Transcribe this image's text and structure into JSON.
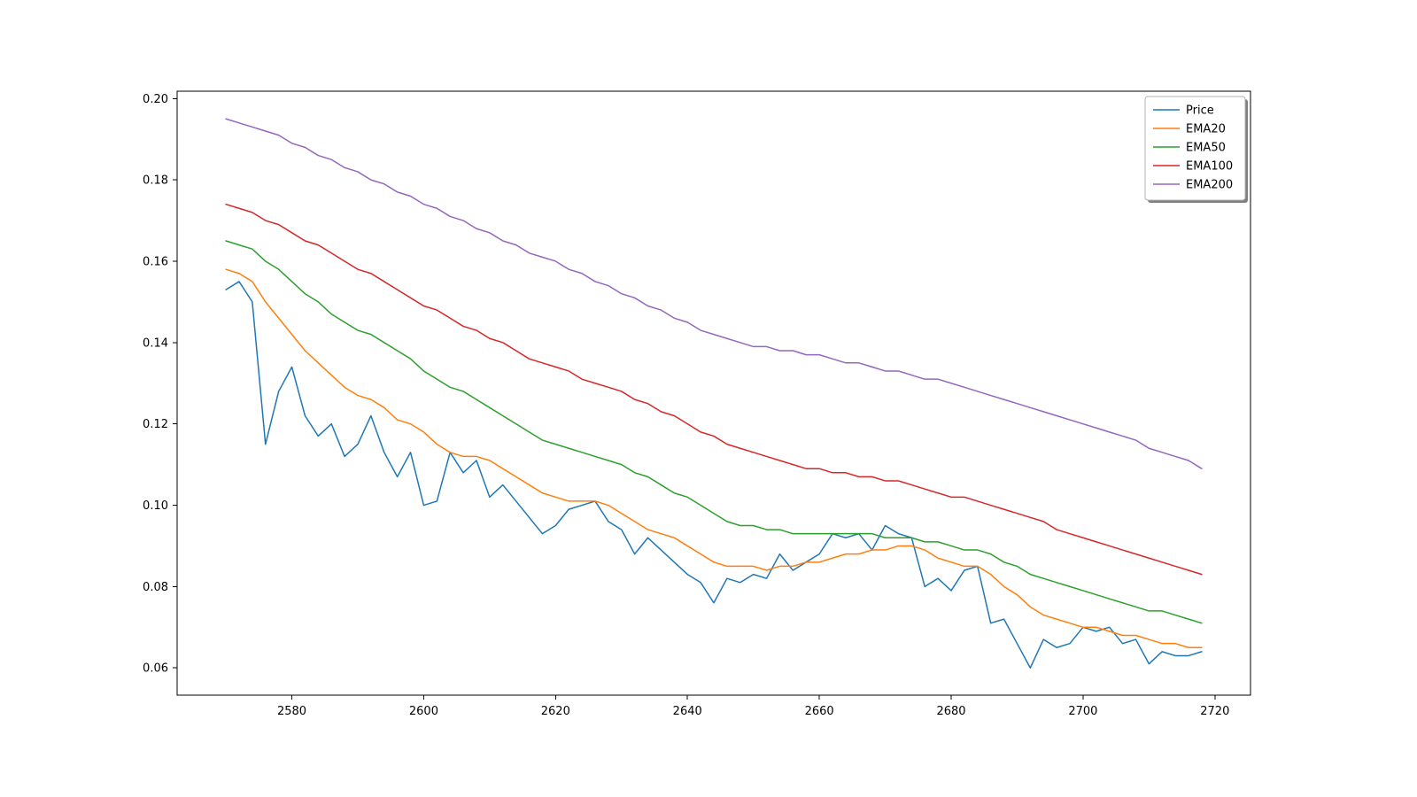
{
  "chart_data": {
    "type": "line",
    "title": "",
    "xlabel": "",
    "ylabel": "",
    "grid": false,
    "legend_position": "upper right",
    "xlim": [
      2562.6,
      2725.4
    ],
    "ylim": [
      0.0533,
      0.2018
    ],
    "x_ticks": [
      2580,
      2600,
      2620,
      2640,
      2660,
      2680,
      2700,
      2720
    ],
    "x_tick_labels": [
      "2580",
      "2600",
      "2620",
      "2640",
      "2660",
      "2680",
      "2700",
      "2720"
    ],
    "y_ticks": [
      0.06,
      0.08,
      0.1,
      0.12,
      0.14,
      0.16,
      0.18,
      0.2
    ],
    "y_tick_labels": [
      "0.06",
      "0.08",
      "0.10",
      "0.12",
      "0.14",
      "0.16",
      "0.18",
      "0.20"
    ],
    "x": [
      2570,
      2572,
      2574,
      2576,
      2578,
      2580,
      2582,
      2584,
      2586,
      2588,
      2590,
      2592,
      2594,
      2596,
      2598,
      2600,
      2602,
      2604,
      2606,
      2608,
      2610,
      2612,
      2614,
      2616,
      2618,
      2620,
      2622,
      2624,
      2626,
      2628,
      2630,
      2632,
      2634,
      2636,
      2638,
      2640,
      2642,
      2644,
      2646,
      2648,
      2650,
      2652,
      2654,
      2656,
      2658,
      2660,
      2662,
      2664,
      2666,
      2668,
      2670,
      2672,
      2674,
      2676,
      2678,
      2680,
      2682,
      2684,
      2686,
      2688,
      2690,
      2692,
      2694,
      2696,
      2698,
      2700,
      2702,
      2704,
      2706,
      2708,
      2710,
      2712,
      2714,
      2716,
      2718
    ],
    "series": [
      {
        "name": "Price",
        "color": "#1f77b4",
        "values": [
          0.153,
          0.155,
          0.15,
          0.115,
          0.128,
          0.134,
          0.122,
          0.117,
          0.12,
          0.112,
          0.115,
          0.122,
          0.113,
          0.107,
          0.113,
          0.1,
          0.101,
          0.113,
          0.108,
          0.111,
          0.102,
          0.105,
          0.101,
          0.097,
          0.093,
          0.095,
          0.099,
          0.1,
          0.101,
          0.096,
          0.094,
          0.088,
          0.092,
          0.089,
          0.086,
          0.083,
          0.081,
          0.076,
          0.082,
          0.081,
          0.083,
          0.082,
          0.088,
          0.084,
          0.086,
          0.088,
          0.093,
          0.092,
          0.093,
          0.089,
          0.095,
          0.093,
          0.092,
          0.08,
          0.082,
          0.079,
          0.084,
          0.085,
          0.071,
          0.072,
          0.066,
          0.06,
          0.067,
          0.065,
          0.066,
          0.07,
          0.069,
          0.07,
          0.066,
          0.067,
          0.061,
          0.064,
          0.063,
          0.063,
          0.064
        ]
      },
      {
        "name": "EMA20",
        "color": "#ff7f0e",
        "values": [
          0.158,
          0.157,
          0.155,
          0.15,
          0.146,
          0.142,
          0.138,
          0.135,
          0.132,
          0.129,
          0.127,
          0.126,
          0.124,
          0.121,
          0.12,
          0.118,
          0.115,
          0.113,
          0.112,
          0.112,
          0.111,
          0.109,
          0.107,
          0.105,
          0.103,
          0.102,
          0.101,
          0.101,
          0.101,
          0.1,
          0.098,
          0.096,
          0.094,
          0.093,
          0.092,
          0.09,
          0.088,
          0.086,
          0.085,
          0.085,
          0.085,
          0.084,
          0.085,
          0.085,
          0.086,
          0.086,
          0.087,
          0.088,
          0.088,
          0.089,
          0.089,
          0.09,
          0.09,
          0.089,
          0.087,
          0.086,
          0.085,
          0.085,
          0.083,
          0.08,
          0.078,
          0.075,
          0.073,
          0.072,
          0.071,
          0.07,
          0.07,
          0.069,
          0.068,
          0.068,
          0.067,
          0.066,
          0.066,
          0.065,
          0.065
        ]
      },
      {
        "name": "EMA50",
        "color": "#2ca02c",
        "values": [
          0.165,
          0.164,
          0.163,
          0.16,
          0.158,
          0.155,
          0.152,
          0.15,
          0.147,
          0.145,
          0.143,
          0.142,
          0.14,
          0.138,
          0.136,
          0.133,
          0.131,
          0.129,
          0.128,
          0.126,
          0.124,
          0.122,
          0.12,
          0.118,
          0.116,
          0.115,
          0.114,
          0.113,
          0.112,
          0.111,
          0.11,
          0.108,
          0.107,
          0.105,
          0.103,
          0.102,
          0.1,
          0.098,
          0.096,
          0.095,
          0.095,
          0.094,
          0.094,
          0.093,
          0.093,
          0.093,
          0.093,
          0.093,
          0.093,
          0.093,
          0.092,
          0.092,
          0.092,
          0.091,
          0.091,
          0.09,
          0.089,
          0.089,
          0.088,
          0.086,
          0.085,
          0.083,
          0.082,
          0.081,
          0.08,
          0.079,
          0.078,
          0.077,
          0.076,
          0.075,
          0.074,
          0.074,
          0.073,
          0.072,
          0.071
        ]
      },
      {
        "name": "EMA100",
        "color": "#d62728",
        "values": [
          0.174,
          0.173,
          0.172,
          0.17,
          0.169,
          0.167,
          0.165,
          0.164,
          0.162,
          0.16,
          0.158,
          0.157,
          0.155,
          0.153,
          0.151,
          0.149,
          0.148,
          0.146,
          0.144,
          0.143,
          0.141,
          0.14,
          0.138,
          0.136,
          0.135,
          0.134,
          0.133,
          0.131,
          0.13,
          0.129,
          0.128,
          0.126,
          0.125,
          0.123,
          0.122,
          0.12,
          0.118,
          0.117,
          0.115,
          0.114,
          0.113,
          0.112,
          0.111,
          0.11,
          0.109,
          0.109,
          0.108,
          0.108,
          0.107,
          0.107,
          0.106,
          0.106,
          0.105,
          0.104,
          0.103,
          0.102,
          0.102,
          0.101,
          0.1,
          0.099,
          0.098,
          0.097,
          0.096,
          0.094,
          0.093,
          0.092,
          0.091,
          0.09,
          0.089,
          0.088,
          0.087,
          0.086,
          0.085,
          0.084,
          0.083
        ]
      },
      {
        "name": "EMA200",
        "color": "#9467bd",
        "values": [
          0.195,
          0.194,
          0.193,
          0.192,
          0.191,
          0.189,
          0.188,
          0.186,
          0.185,
          0.183,
          0.182,
          0.18,
          0.179,
          0.177,
          0.176,
          0.174,
          0.173,
          0.171,
          0.17,
          0.168,
          0.167,
          0.165,
          0.164,
          0.162,
          0.161,
          0.16,
          0.158,
          0.157,
          0.155,
          0.154,
          0.152,
          0.151,
          0.149,
          0.148,
          0.146,
          0.145,
          0.143,
          0.142,
          0.141,
          0.14,
          0.139,
          0.139,
          0.138,
          0.138,
          0.137,
          0.137,
          0.136,
          0.135,
          0.135,
          0.134,
          0.133,
          0.133,
          0.132,
          0.131,
          0.131,
          0.13,
          0.129,
          0.128,
          0.127,
          0.126,
          0.125,
          0.124,
          0.123,
          0.122,
          0.121,
          0.12,
          0.119,
          0.118,
          0.117,
          0.116,
          0.114,
          0.113,
          0.112,
          0.111,
          0.109
        ]
      }
    ],
    "legend_entries": [
      "Price",
      "EMA20",
      "EMA50",
      "EMA100",
      "EMA200"
    ],
    "colors": {
      "axis": "#000000",
      "legend_border": "#b0b0b0",
      "legend_bg": "#ffffff",
      "legend_shadow": "#7f7f7f"
    }
  }
}
